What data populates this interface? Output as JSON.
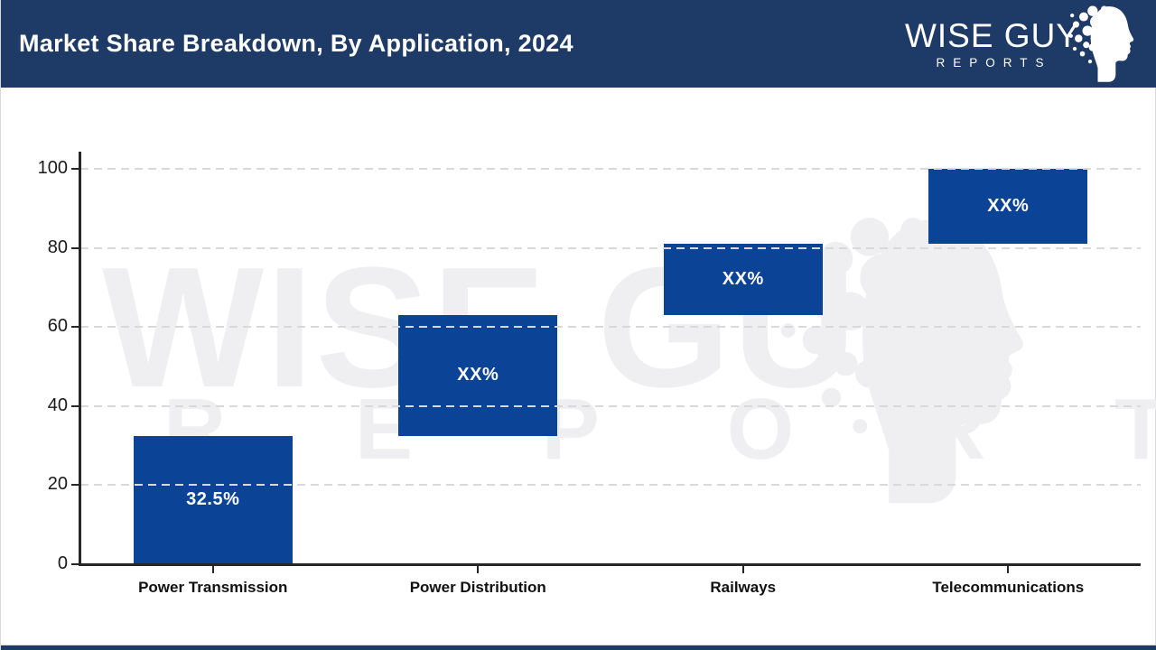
{
  "header": {
    "title": "Market Share Breakdown, By Application, 2024",
    "bg_color": "#1e3a66",
    "logo": {
      "wordmark": "WISE GUY",
      "subtext": "REPORTS"
    }
  },
  "watermark": {
    "wordmark": "WISE GUY",
    "reports": "R E P O R T S",
    "color": "#efeff1"
  },
  "chart_data": {
    "type": "bar",
    "subtype": "waterfall",
    "title": "Market Share Breakdown, By Application, 2024",
    "xlabel": "",
    "ylabel": "",
    "categories": [
      "Power Transmission",
      "Power Distribution",
      "Railways",
      "Telecommunications"
    ],
    "segments": [
      {
        "category": "Power Transmission",
        "start": 0,
        "end": 32.5,
        "label": "32.5%"
      },
      {
        "category": "Power Distribution",
        "start": 32.5,
        "end": 63,
        "label": "XX%"
      },
      {
        "category": "Railways",
        "start": 63,
        "end": 81,
        "label": "XX%"
      },
      {
        "category": "Telecommunications",
        "start": 81,
        "end": 100,
        "label": "XX%"
      }
    ],
    "ylim": [
      0,
      100
    ],
    "yticks": [
      0,
      20,
      40,
      60,
      80,
      100
    ],
    "grid": "horizontal-dashed",
    "legend": "none",
    "colors": {
      "bar": "#0b4397",
      "bar_label": "#ffffff",
      "grid": "#d9d9d9",
      "axis": "#262626",
      "tick_label": "#1a1a1a"
    }
  }
}
